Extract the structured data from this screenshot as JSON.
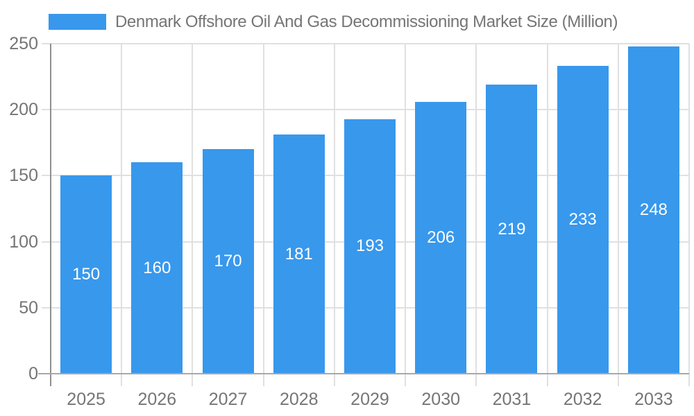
{
  "chart_data": {
    "type": "bar",
    "title": "Denmark Offshore Oil And Gas Decommissioning Market Size (Million)",
    "categories": [
      "2025",
      "2026",
      "2027",
      "2028",
      "2029",
      "2030",
      "2031",
      "2032",
      "2033"
    ],
    "values": [
      150,
      160,
      170,
      181,
      193,
      206,
      219,
      233,
      248
    ],
    "xlabel": "",
    "ylabel": "",
    "ylim": [
      0,
      250
    ],
    "yticks": [
      0,
      50,
      100,
      150,
      200,
      250
    ],
    "grid": true,
    "legend_position": "top-left",
    "colors": {
      "bar": "#3898ec",
      "bar_label": "#ffffff",
      "axis_text": "#757575",
      "grid": "#e0e0e0",
      "axis_line": "#8f8f8f",
      "baseline": "#a8a8a8"
    }
  }
}
